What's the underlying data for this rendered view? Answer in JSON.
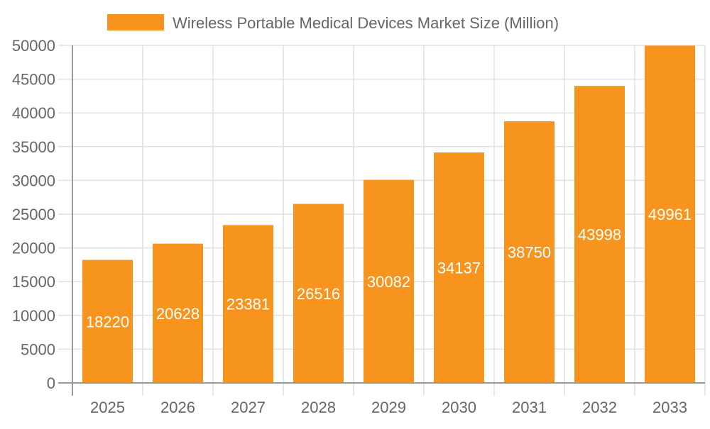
{
  "chart_data": {
    "type": "bar",
    "categories": [
      "2025",
      "2026",
      "2027",
      "2028",
      "2029",
      "2030",
      "2031",
      "2032",
      "2033"
    ],
    "series": [
      {
        "name": "Wireless Portable Medical Devices Market Size (Million)",
        "values": [
          18220,
          20628,
          23381,
          26516,
          30082,
          34137,
          38750,
          43998,
          49961
        ]
      }
    ],
    "ylim": [
      0,
      50000
    ],
    "yticks": [
      0,
      5000,
      10000,
      15000,
      20000,
      25000,
      30000,
      35000,
      40000,
      45000,
      50000
    ],
    "grid": true,
    "legend": "top-center",
    "data_labels": true,
    "colors": {
      "bar": "#f7941e",
      "label": "#ffffff",
      "grid": "#e0e0e0",
      "axis": "#999999",
      "text": "#666666"
    }
  }
}
